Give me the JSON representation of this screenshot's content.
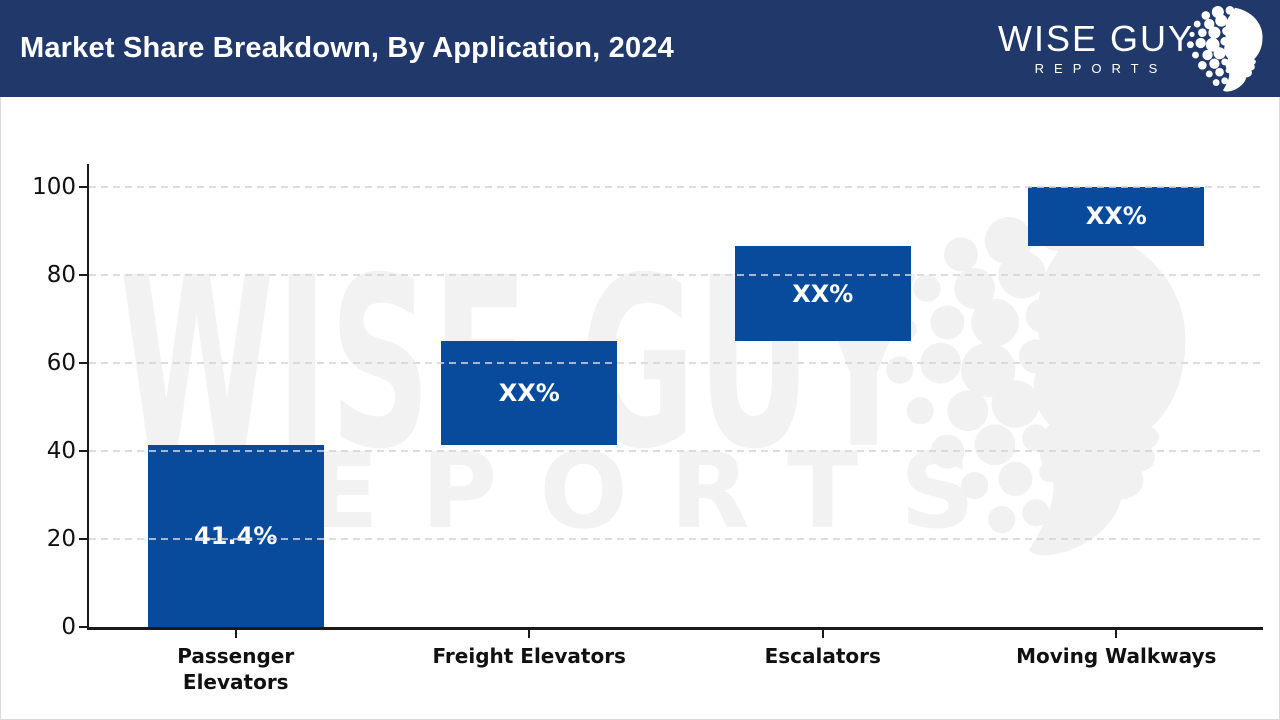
{
  "header": {
    "title": "Market Share Breakdown, By Application, 2024",
    "bg_color": "#21386B",
    "logo": {
      "line1": "WISE GUY",
      "line2": "REPORTS"
    }
  },
  "watermark": {
    "line1": "WISE GUY",
    "line2": "REPORTS"
  },
  "chart_data": {
    "type": "bar",
    "subtype": "waterfall",
    "title": "Market Share Breakdown, By Application, 2024",
    "categories": [
      "Passenger\nElevators",
      "Freight Elevators",
      "Escalators",
      "Moving Walkways"
    ],
    "segments": [
      {
        "category": "Passenger Elevators",
        "start": 0,
        "end": 41.4,
        "label": "41.4%"
      },
      {
        "category": "Freight Elevators",
        "start": 41.4,
        "end": 65.0,
        "label": "XX%"
      },
      {
        "category": "Escalators",
        "start": 65.0,
        "end": 86.4,
        "label": "XX%"
      },
      {
        "category": "Moving Walkways",
        "start": 86.4,
        "end": 100,
        "label": "XX%"
      }
    ],
    "yticks": [
      0,
      20,
      40,
      60,
      80,
      100
    ],
    "ylim": [
      0,
      105
    ],
    "xlabel": "",
    "ylabel": "",
    "grid": "horizontal-dashed",
    "legend": "none",
    "bar_color": "#084A9C",
    "bar_label_color": "#ffffff",
    "axis_color": "#1a1a1a"
  }
}
